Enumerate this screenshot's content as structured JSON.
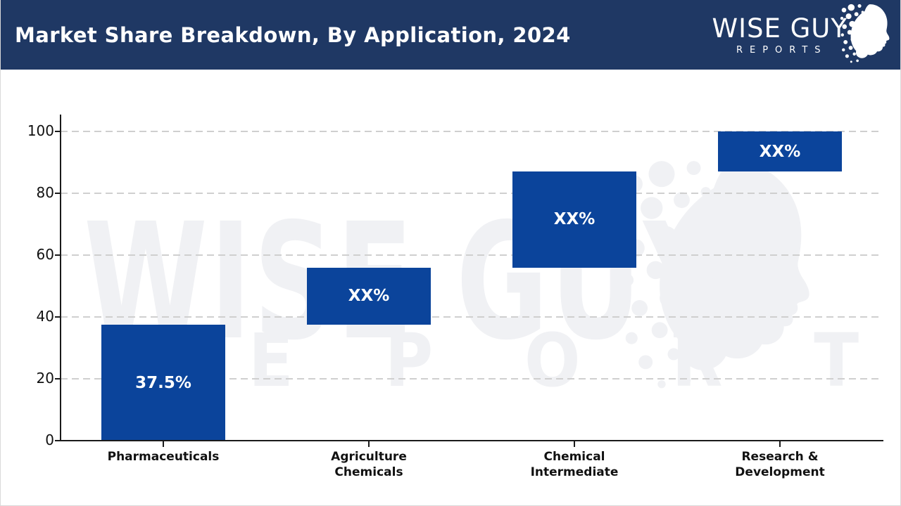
{
  "header": {
    "title": "Market Share Breakdown, By Application, 2024",
    "logo": {
      "brand_top": "WISE GUY",
      "brand_bottom": "REPORTS"
    }
  },
  "watermark": {
    "line1": "WISE GUY",
    "line2": "R E P O R T S"
  },
  "colors": {
    "header_bg": "#1f3864",
    "bar": "#0b449b",
    "bar_label": "#ffffff",
    "axis": "#1a1a1a",
    "grid": "#cfcfcf",
    "watermark": "#f0f1f4",
    "canvas_border": "#d9d9d9",
    "tick_label": "#111111"
  },
  "chart_data": {
    "type": "bar",
    "subtype": "waterfall (floating cumulative segments)",
    "title": "Market Share Breakdown, By Application, 2024",
    "categories": [
      "Pharmaceuticals",
      "Agriculture Chemicals",
      "Chemical Intermediate",
      "Research & Development"
    ],
    "category_label_lines": [
      [
        "Pharmaceuticals"
      ],
      [
        "Agriculture",
        "Chemicals"
      ],
      [
        "Chemical",
        "Intermediate"
      ],
      [
        "Research &",
        "Development"
      ]
    ],
    "segments": [
      {
        "category": "Pharmaceuticals",
        "start": 0,
        "end": 37.5,
        "label": "37.5%"
      },
      {
        "category": "Agriculture Chemicals",
        "start": 37.5,
        "end": 56,
        "label": "XX%"
      },
      {
        "category": "Chemical Intermediate",
        "start": 56,
        "end": 87,
        "label": "XX%"
      },
      {
        "category": "Research & Development",
        "start": 87,
        "end": 100,
        "label": "XX%"
      }
    ],
    "xlabel": "",
    "ylabel": "",
    "ylim": [
      0,
      100
    ],
    "yticks": [
      0,
      20,
      40,
      60,
      80,
      100
    ],
    "grid": "horizontal dashed",
    "legend": "none",
    "bar_color": "#0b449b"
  }
}
